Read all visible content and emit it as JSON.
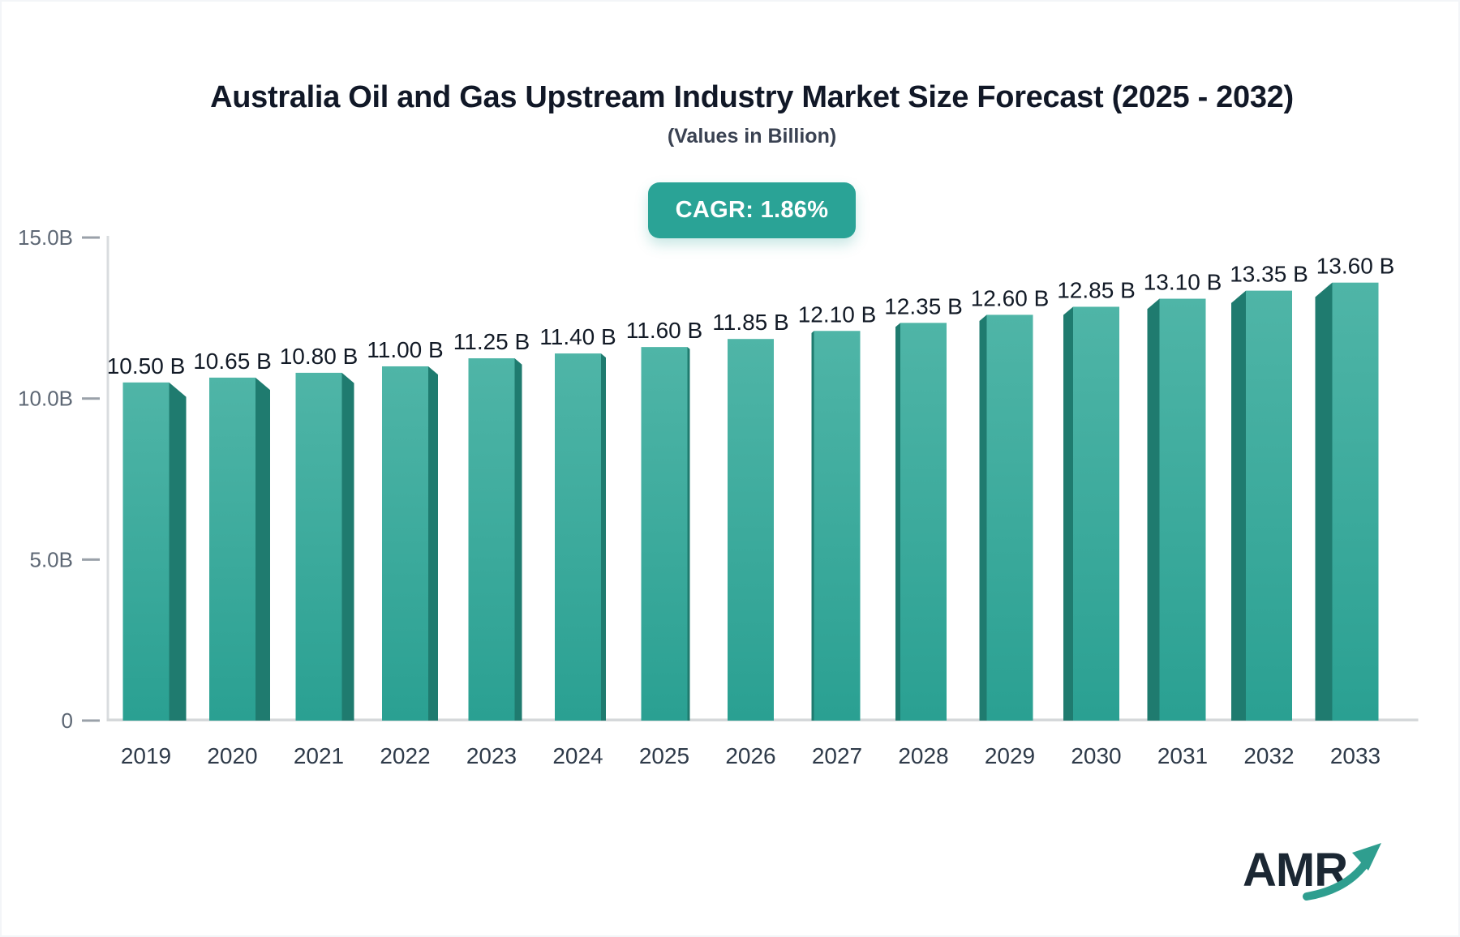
{
  "header": {
    "cagr_label": "CAGR: 1.86%"
  },
  "logo": {
    "text": "AMR",
    "arrow_icon": "growth-arrow-icon"
  },
  "colors": {
    "accent_badge_bg": "#2aa396",
    "bar_front_top": "#4fb5a7",
    "bar_front_bottom": "#2aa092",
    "bar_side": "#1f7b6f",
    "axis_line": "#d9dcdf",
    "baseline": "#d5d8da",
    "tick_dash": "#9aa1a9",
    "y_label": "#5d6774",
    "x_label": "#2e3a49",
    "value_label": "#121a26",
    "logo_text": "#1b2733",
    "logo_arrow": "#2f9e8f"
  },
  "chart_data": {
    "type": "bar",
    "title": "Australia Oil and Gas Upstream Industry Market Size Forecast (2025 - 2032)",
    "subtitle": "(Values in Billion)",
    "cagr": "1.86%",
    "unit": "Billion",
    "categories": [
      "2019",
      "2020",
      "2021",
      "2022",
      "2023",
      "2024",
      "2025",
      "2026",
      "2027",
      "2028",
      "2029",
      "2030",
      "2031",
      "2032",
      "2033"
    ],
    "values": [
      10.5,
      10.65,
      10.8,
      11.0,
      11.25,
      11.4,
      11.6,
      11.85,
      12.1,
      12.35,
      12.6,
      12.85,
      13.1,
      13.35,
      13.6
    ],
    "value_labels": [
      "10.50 B",
      "10.65 B",
      "10.80 B",
      "11.00 B",
      "11.25 B",
      "11.40 B",
      "11.60 B",
      "11.85 B",
      "12.10 B",
      "12.35 B",
      "12.60 B",
      "12.85 B",
      "13.10 B",
      "13.35 B",
      "13.60 B"
    ],
    "ylim": [
      0,
      15
    ],
    "y_ticks": [
      {
        "label": "15.0B",
        "value": 15
      },
      {
        "label": "10.0B",
        "value": 10
      },
      {
        "label": "5.0B",
        "value": 5
      },
      {
        "label": "0",
        "value": 0
      }
    ],
    "grid": "off",
    "legend": "none",
    "bar_style": "3d-perspective-teal"
  }
}
